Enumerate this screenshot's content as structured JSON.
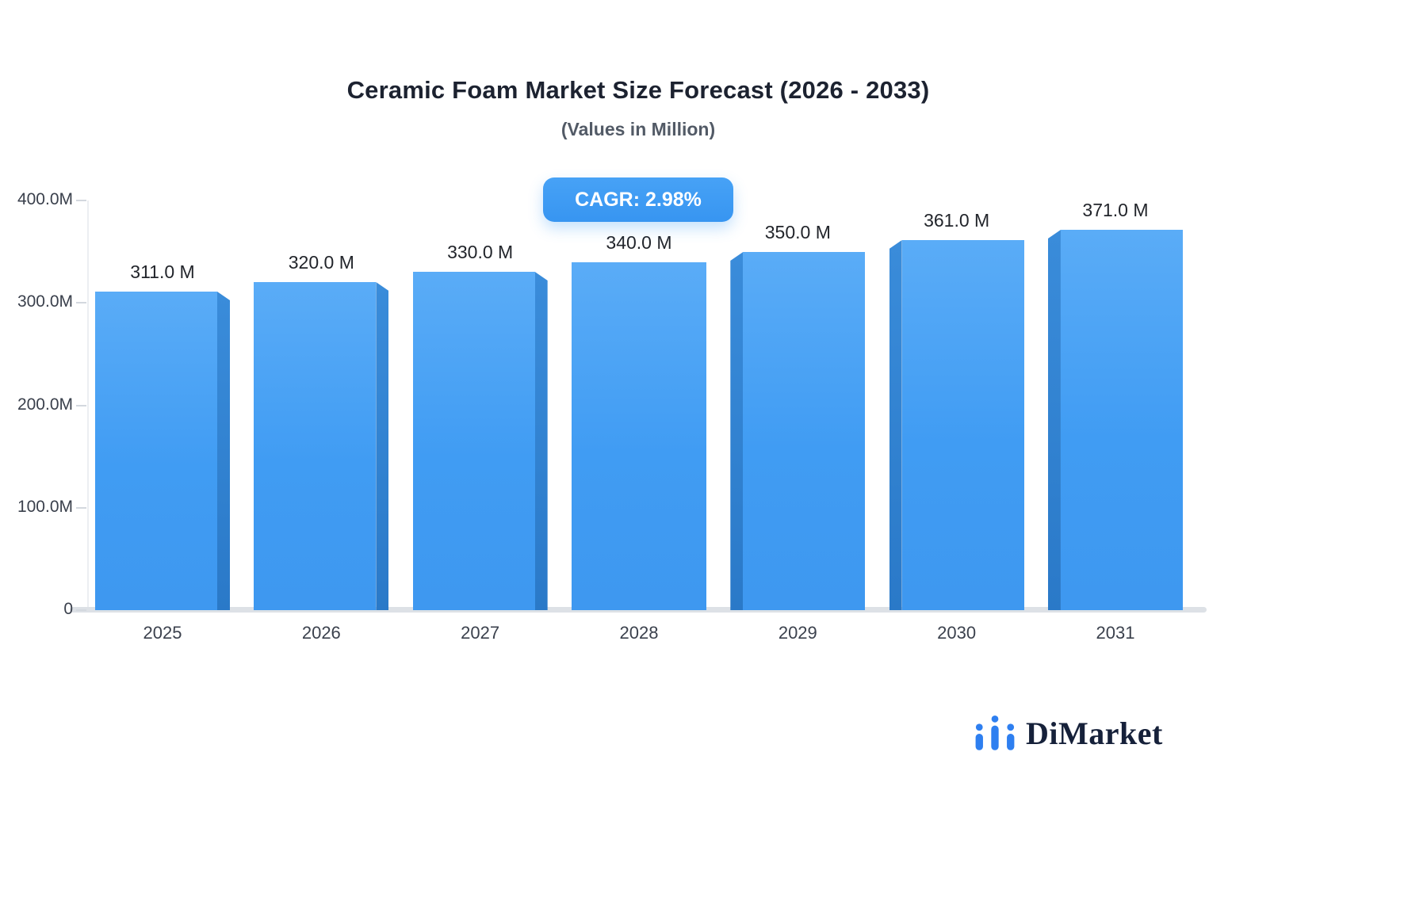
{
  "header": {
    "title": "Ceramic Foam Market Size Forecast (2026 - 2033)",
    "subtitle": "(Values in Million)"
  },
  "badge": {
    "label": "CAGR: 2.98%"
  },
  "chart_data": {
    "type": "bar",
    "categories": [
      "2025",
      "2026",
      "2027",
      "2028",
      "2029",
      "2030",
      "2031"
    ],
    "values": [
      311.0,
      320.0,
      330.0,
      340.0,
      350.0,
      361.0,
      371.0
    ],
    "value_labels": [
      "311.0 M",
      "320.0 M",
      "330.0 M",
      "340.0 M",
      "350.0 M",
      "361.0 M",
      "371.0 M"
    ],
    "title": "Ceramic Foam Market Size Forecast (2026 - 2033)",
    "subtitle": "(Values in Million)",
    "xlabel": "",
    "ylabel": "",
    "ylim": [
      0,
      400
    ],
    "y_ticks": [
      "400.0M",
      "300.0M",
      "200.0M",
      "100.0M",
      "0"
    ],
    "grid": false,
    "legend": false,
    "annotation": "CAGR: 2.98%"
  },
  "logo": {
    "text": "DiMarket"
  },
  "colors": {
    "accent": "#3b9af2",
    "bar_fill": "#449ff4",
    "bar_side": "#2c7ecc",
    "badge_bg": "#3b9cf5",
    "title_text": "#1c2230",
    "subtitle_text": "#525a66",
    "axis_text": "#3a404c",
    "baseline": "#dde1e6",
    "logo_icon": "#2e7ff0",
    "logo_text": "#16213a"
  }
}
